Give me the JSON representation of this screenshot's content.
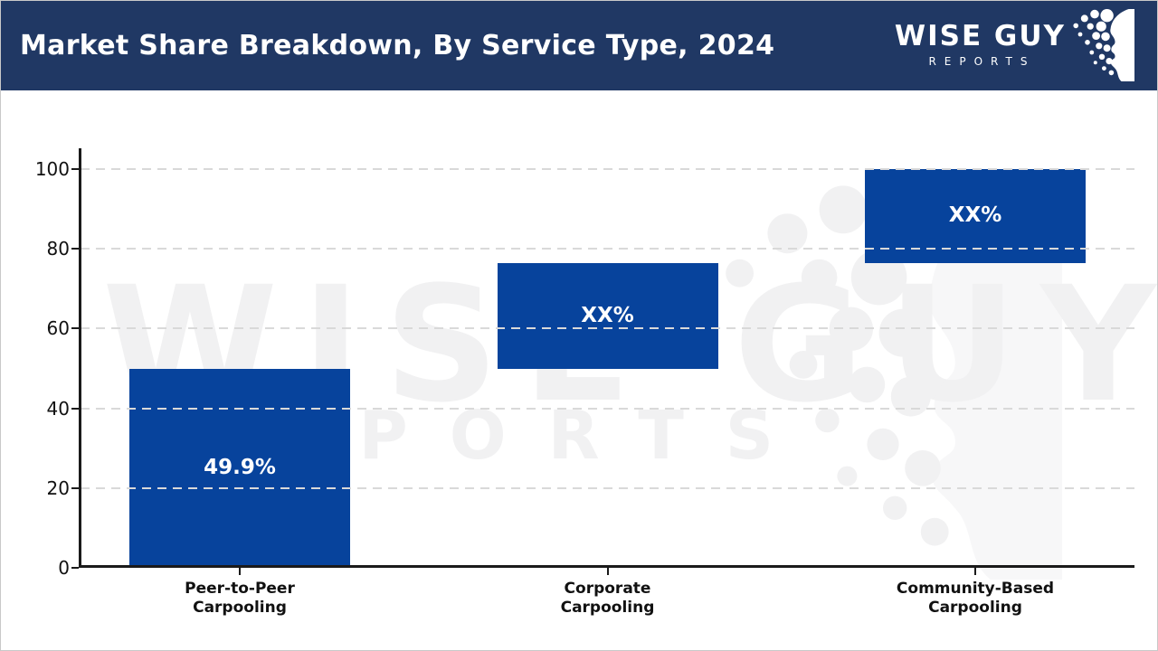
{
  "header": {
    "title": "Market Share Breakdown, By Service Type, 2024",
    "logo": {
      "line1": "WISE GUY",
      "line2": "REPORTS"
    }
  },
  "watermark": {
    "line1": "WISE GUY",
    "line2": "REPORTS"
  },
  "colors": {
    "header_bg": "#203864",
    "bar_fill": "#07439c",
    "gridline": "#d9d9d9",
    "watermark": "#f1f1f2"
  },
  "chart_data": {
    "type": "bar",
    "subtype": "waterfall",
    "title": "Market Share Breakdown, By Service Type, 2024",
    "categories": [
      "Peer-to-Peer Carpooling",
      "Corporate Carpooling",
      "Community-Based Carpooling"
    ],
    "category_lines": [
      [
        "Peer-to-Peer",
        "Carpooling"
      ],
      [
        "Corporate",
        "Carpooling"
      ],
      [
        "Community-Based",
        "Carpooling"
      ]
    ],
    "bars": [
      {
        "category": "Peer-to-Peer Carpooling",
        "start": 0,
        "end": 49.9,
        "label": "49.9%"
      },
      {
        "category": "Corporate Carpooling",
        "start": 49.9,
        "end": 76.4,
        "label": "XX%"
      },
      {
        "category": "Community-Based Carpooling",
        "start": 76.4,
        "end": 100,
        "label": "XX%"
      }
    ],
    "yticks": [
      0,
      20,
      40,
      60,
      80,
      100
    ],
    "ylim": [
      0,
      105
    ],
    "grid": "horizontal-dashed",
    "legend": "none"
  }
}
